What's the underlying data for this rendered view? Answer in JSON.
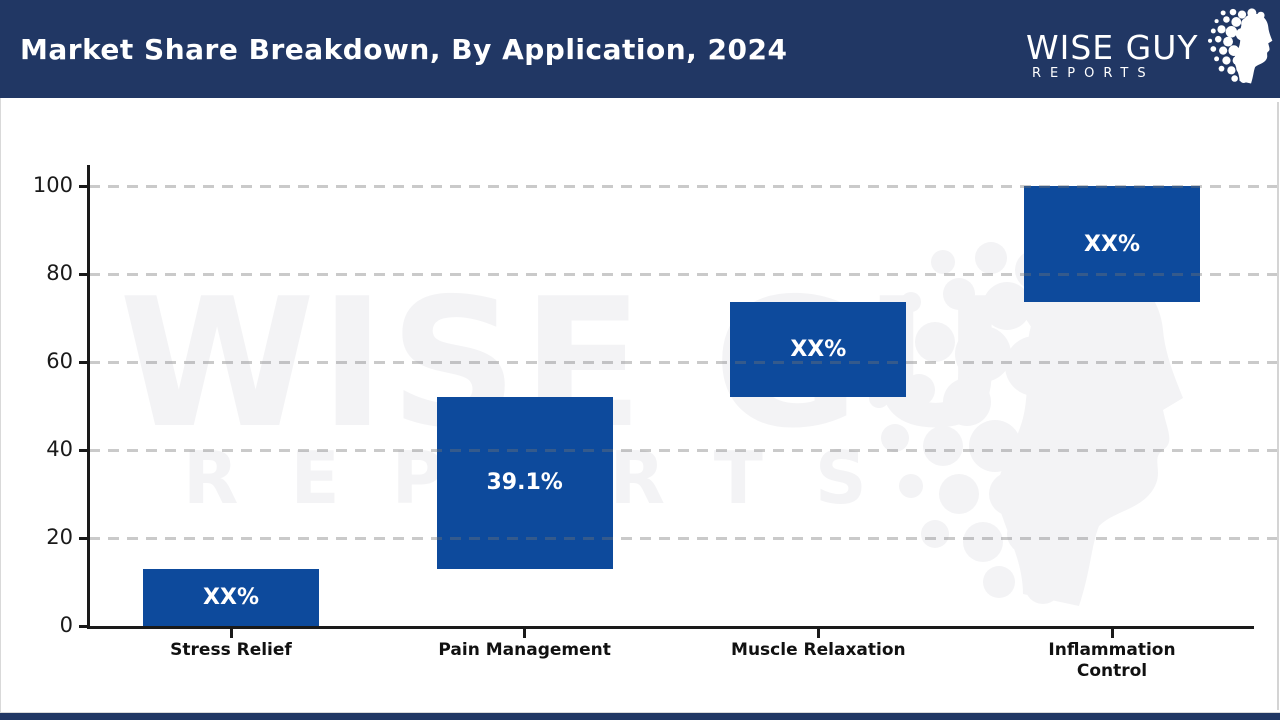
{
  "header": {
    "title": "Market Share Breakdown, By Application, 2024",
    "logo": {
      "brand": "WISE GUY",
      "sub": "REPORTS"
    }
  },
  "watermark": {
    "brand": "WISE GUY",
    "sub": "REPORTS"
  },
  "chart_data": {
    "type": "bar",
    "subtype": "waterfall",
    "title": "Market Share Breakdown, By Application, 2024",
    "categories": [
      "Stress Relief",
      "Pain Management",
      "Muscle Relaxation",
      "Inflammation Control"
    ],
    "tick_labels": [
      "Stress Relief",
      "Pain Management",
      "Muscle Relaxation",
      "Inflammation\nControl"
    ],
    "series": [
      {
        "name": "Market share (%)",
        "segments": [
          {
            "category": "Stress Relief",
            "start": 0,
            "end": 13.0,
            "label": "XX%"
          },
          {
            "category": "Pain Management",
            "start": 13.0,
            "end": 52.1,
            "label": "39.1%"
          },
          {
            "category": "Muscle Relaxation",
            "start": 52.1,
            "end": 73.6,
            "label": "XX%"
          },
          {
            "category": "Inflammation Control",
            "start": 73.6,
            "end": 100.0,
            "label": "XX%"
          }
        ]
      }
    ],
    "ylim": [
      0,
      100
    ],
    "yticks": [
      0,
      20,
      40,
      60,
      80,
      100
    ],
    "grid": {
      "horizontal": true,
      "style": "dashed"
    },
    "legend": "none",
    "bar_color": "#0d4a9c",
    "bar_label_color": "#ffffff"
  },
  "colors": {
    "header_bg": "#213764",
    "footer_bg": "#213764",
    "bar": "#0d4a9c",
    "watermark": "#f3f3f5",
    "axis": "#1a1a1a"
  }
}
